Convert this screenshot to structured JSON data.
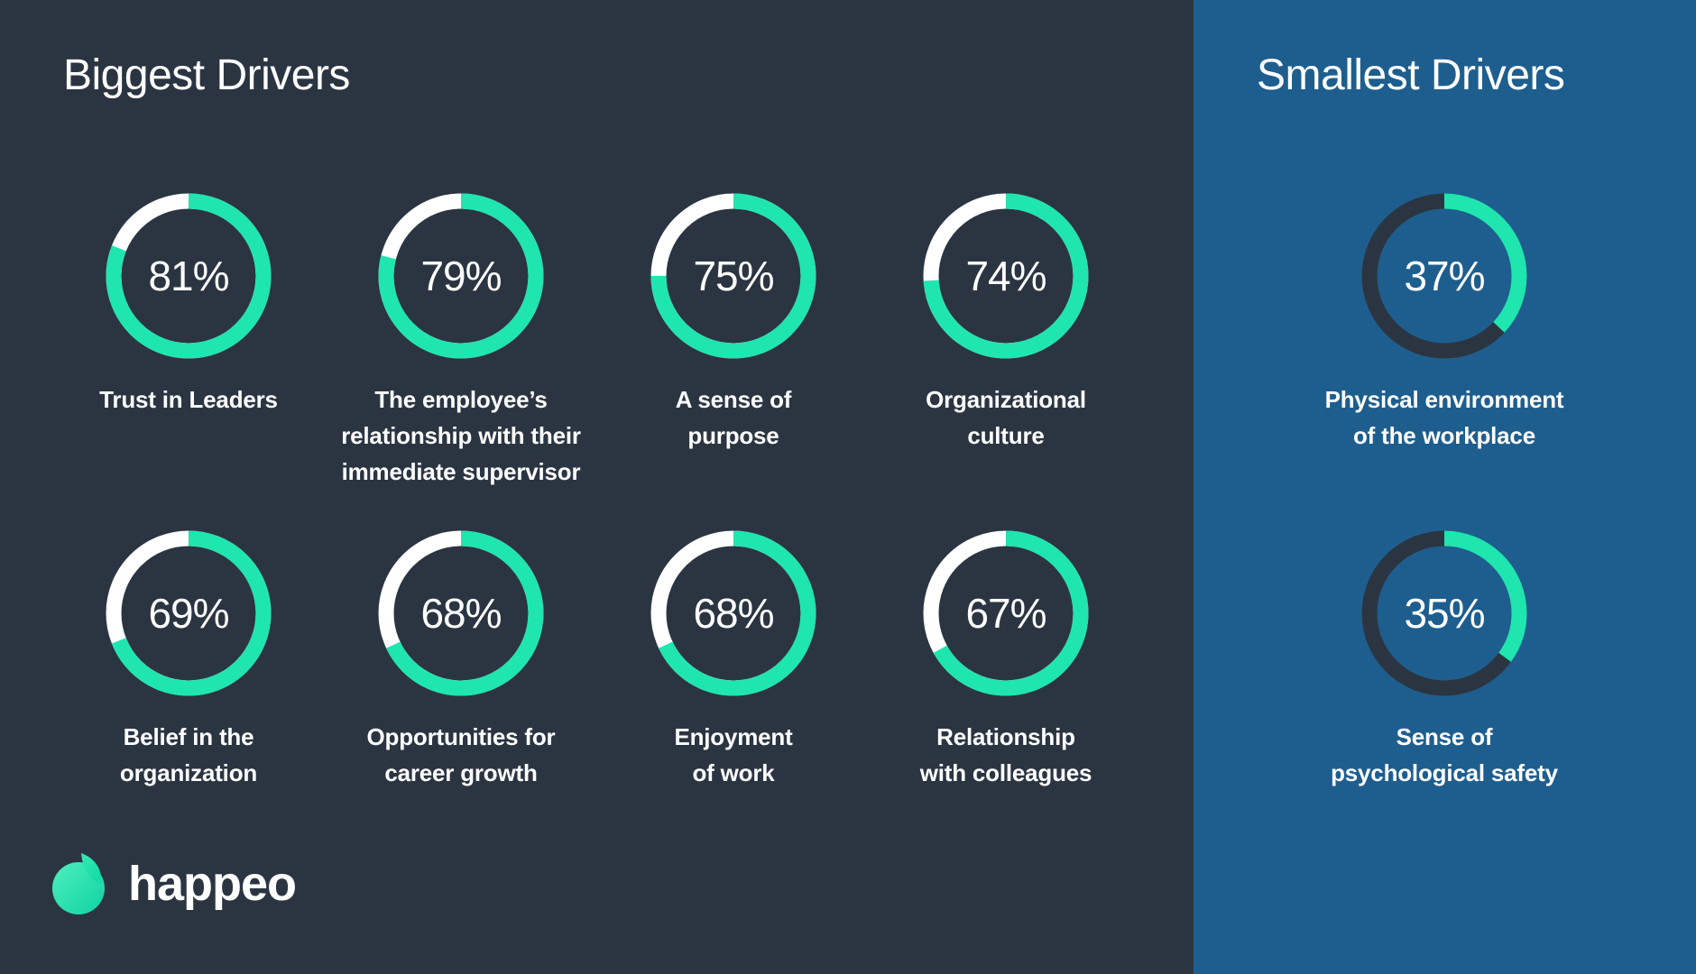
{
  "unit": "%",
  "colors": {
    "background_dark": "#2B3542",
    "panel_blue": "#1E5E8E",
    "accent_green": "#1FE5AF",
    "track_light": "#FFFFFF",
    "track_dark": "#2B3542",
    "text": "#FFFFFF"
  },
  "panels": [
    {
      "id": "biggest",
      "title": "Biggest Drivers",
      "track": "#FFFFFF",
      "drivers": [
        {
          "percent": 81,
          "label": [
            "Trust in Leaders"
          ]
        },
        {
          "percent": 79,
          "label": [
            "The employee’s",
            "relationship with their",
            "immediate supervisor"
          ]
        },
        {
          "percent": 75,
          "label": [
            "A sense of",
            "purpose"
          ]
        },
        {
          "percent": 74,
          "label": [
            "Organizational",
            "culture"
          ]
        },
        {
          "percent": 69,
          "label": [
            "Belief in the",
            "organization"
          ]
        },
        {
          "percent": 68,
          "label": [
            "Opportunities for",
            "career growth"
          ]
        },
        {
          "percent": 68,
          "label": [
            "Enjoyment",
            "of work"
          ]
        },
        {
          "percent": 67,
          "label": [
            "Relationship",
            "with colleagues"
          ]
        }
      ]
    },
    {
      "id": "smallest",
      "title": "Smallest Drivers",
      "track": "#2B3542",
      "drivers": [
        {
          "percent": 37,
          "label": [
            "Physical environment",
            "of the workplace"
          ]
        },
        {
          "percent": 35,
          "label": [
            "Sense of",
            "psychological safety"
          ]
        }
      ]
    }
  ],
  "logo": {
    "text": "happeo"
  },
  "chart_data": [
    {
      "type": "pie",
      "title": "Biggest Drivers",
      "subtype": "donut-per-item",
      "categories": [
        "Trust in Leaders",
        "The employee’s relationship with their immediate supervisor",
        "A sense of purpose",
        "Organizational culture",
        "Belief in the organization",
        "Opportunities for career growth",
        "Enjoyment of work",
        "Relationship with colleagues"
      ],
      "values": [
        81,
        79,
        75,
        74,
        69,
        68,
        68,
        67
      ],
      "unit": "%",
      "start_angle": "top",
      "direction": "clockwise",
      "fill_color": "#1FE5AF",
      "remainder_color": "#FFFFFF"
    },
    {
      "type": "pie",
      "title": "Smallest Drivers",
      "subtype": "donut-per-item",
      "categories": [
        "Physical environment of the workplace",
        "Sense of psychological safety"
      ],
      "values": [
        37,
        35
      ],
      "unit": "%",
      "start_angle": "top",
      "direction": "clockwise",
      "fill_color": "#1FE5AF",
      "remainder_color": "#2B3542"
    }
  ]
}
